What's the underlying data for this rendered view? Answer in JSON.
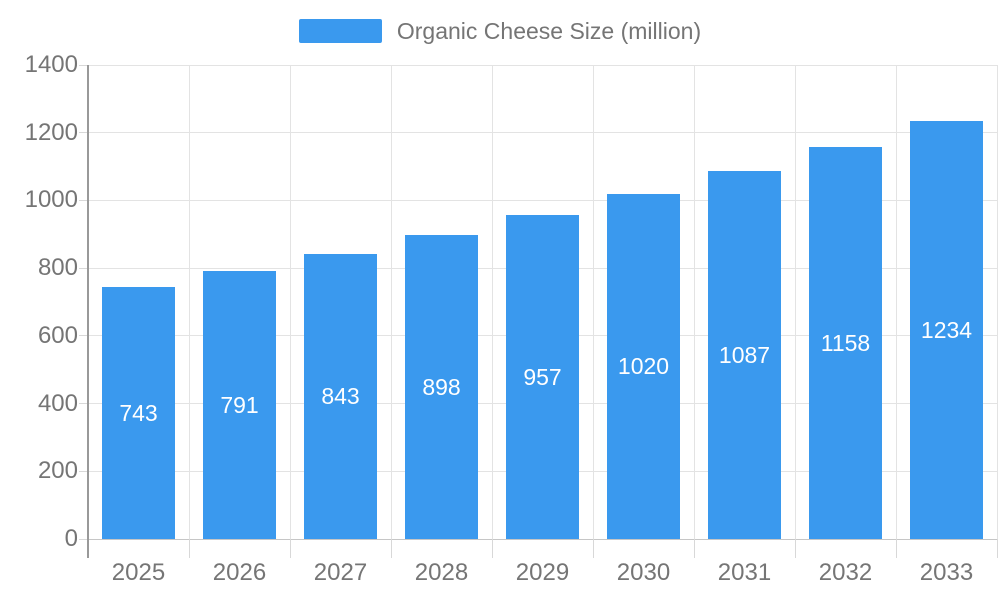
{
  "legend": {
    "label": "Organic Cheese Size (million)"
  },
  "colors": {
    "bar": "#3A99EE",
    "bar_label_text": "#FFFFFF",
    "grid": "#E3E3E3",
    "axis": "#999999",
    "baseline": "#C6C6C6",
    "tick": "#D8D8D8",
    "text": "#757575",
    "background": "#FFFFFF"
  },
  "chart_data": {
    "type": "bar",
    "title": "Organic Cheese Size (million)",
    "categories": [
      "2025",
      "2026",
      "2027",
      "2028",
      "2029",
      "2030",
      "2031",
      "2032",
      "2033"
    ],
    "values": [
      743,
      791,
      843,
      898,
      957,
      1020,
      1087,
      1158,
      1234
    ],
    "series_name": "Organic Cheese Size (million)",
    "xlabel": "",
    "ylabel": "",
    "ylim": [
      0,
      1400
    ],
    "ytick_step": 200,
    "ytick_labels": [
      "0",
      "200",
      "400",
      "600",
      "800",
      "1000",
      "1200",
      "1400"
    ],
    "grid": true,
    "legend_position": "top",
    "value_labels": "inside-center"
  }
}
